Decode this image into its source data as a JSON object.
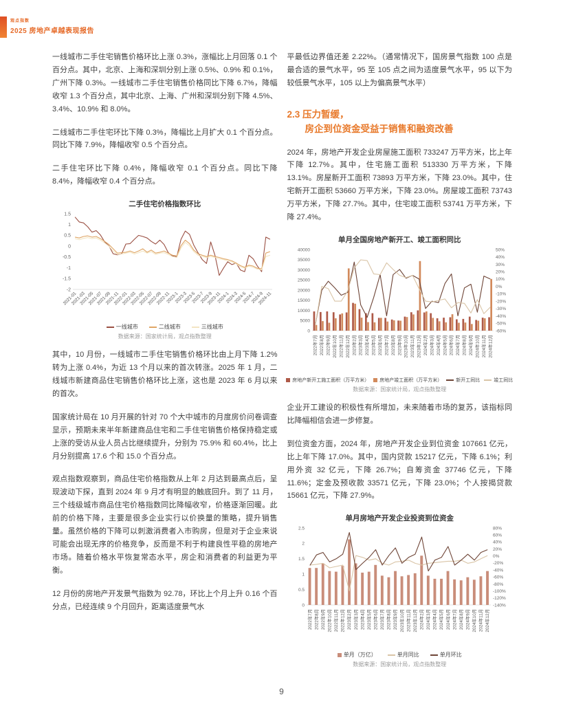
{
  "header": {
    "brand": "观点指数",
    "report_title": "2025 房地产卓越表现报告"
  },
  "page_number": "9",
  "left_column": {
    "paragraphs": [
      "一线城市二手住宅销售价格环比上涨 0.3%，涨幅比上月回落 0.1 个百分点。其中，北京、上海和深圳分别上涨 0.5%、0.9% 和 0.1%，广州下降 0.3%。一线城市二手住宅销售价格同比下降 6.7%，降幅收窄 1.3 个百分点，其中北京、上海、广州和深圳分别下降 4.5%、3.4%、10.9% 和 8.0%。",
      "二线城市二手住宅环比下降 0.3%，降幅比上月扩大 0.1 个百分点。同比下降 7.9%，降幅收窄 0.5 个百分点。",
      "二手住宅环比下降 0.4%，降幅收窄 0.1 个百分点。同比下降 8.4%，降幅收窄 0.4 个百分点。",
      "其中，10 月份，一线城市二手住宅销售价格环比由上月下降 1.2% 转为上涨 0.4%，为近 13 个月以来的首次转涨。2025 年 1 月，二线城市新建商品住宅销售价格环比上涨，这也是 2023 年 6 月以来的首次。",
      "国家统计局在 10 月开展的针对 70 个大中城市的月度房价问卷调查显示，预期未来半年新建商品住宅和二手住宅销售价格保持稳定或上涨的受访从业人员占比继续提升，分别为 75.9% 和 60.4%，比上月分别提高 17.6 个和 15.0 个百分点。",
      "观点指数观察到，商品住宅价格指数从上年 2 月达到最高点后，呈现波动下探，直到 2024 年 9 月才有明显的触底回升。到了 11 月，三个线级城市商品住宅价格指数同比降幅收窄，价格逐渐回暖。此前的价格下降，主要是很多企业实行以价换量的策略，提升销售量。虽然价格的下降可以刺激消费者入市购房，但是对于企业来说可能会出现无序的价格竞争，反而是不利于构建良性平稳的房地产市场。随着价格水平恢复常态水平，房企和消费者的利益更为平衡。",
      "12 月份的房地产开发景气指数为 92.78，环比上个月上升 0.16 个百分点，已经连续 9 个月回升，距离适度景气水"
    ]
  },
  "right_column": {
    "paragraphs": [
      "平最低边界值还差 2.22%。（通常情况下，国房景气指数 100 点是最合适的景气水平，95 至 105 点之间为适度景气水平，95 以下为较低景气水平，105 以上为偏高景气水平）",
      "2024 年，房地产开发企业房屋施工面积 733247 万平方米，比上年下降 12.7%。其中，住宅施工面积 513330 万平方米，下降 13.1%。房屋新开工面积 73893 万平方米，下降 23.0%。其中，住宅新开工面积 53660 万平方米，下降 23.0%。房屋竣工面积 73743 万平方米，下降 27.7%。其中，住宅竣工面积 53741 万平方米，下降 27.4%。",
      "企业开工建设的积极性有所增加，未来随着市场的复苏，该指标同比降幅相信会进一步修复。",
      "到位资金方面，2024 年，房地产开发企业到位资金 107661 亿元，比上年下降 17.0%。其中，国内贷款 15217 亿元，下降 6.1%；利用外资 32 亿元，下降 26.7%；自筹资金 37746 亿元，下降 11.6%；定金及预收款 33571 亿元，下降 23.0%；个人按揭贷款 15661 亿元，下降 27.9%。"
    ],
    "heading": {
      "line1": "2.3 压力暂缓，",
      "line2": "房企到位资金受益于销售和融资改善"
    }
  },
  "chart_data": [
    {
      "id": "resale-price-index-mom",
      "type": "line",
      "title": "二手住宅价格指数环比",
      "source": "数据来源：国家统计局，观点指数整理",
      "legend_position": "bottom",
      "grid": false,
      "label_every": 2,
      "left_axis": {
        "min": -2,
        "max": 1.5,
        "step": 0.5
      },
      "categories": [
        "2021-01",
        "2021-02",
        "2021-03",
        "2021-04",
        "2021-05",
        "2021-06",
        "2021-07",
        "2021-08",
        "2021-09",
        "2021-10",
        "2021-11",
        "2021-12",
        "2022-01",
        "2022-02",
        "2022-03",
        "2022-04",
        "2022-05",
        "2022-06",
        "2022-07",
        "2022-08",
        "2022-09",
        "2022-10",
        "2022-11",
        "2022-12",
        "2023-1",
        "2023-2",
        "2023-3",
        "2023-4",
        "2023-5",
        "2023-6",
        "2023-7",
        "2023-8",
        "2023-9",
        "2023-10",
        "2023-11",
        "2023-12",
        "2024-1",
        "2024-2",
        "2024-3",
        "2024-4",
        "2024-5",
        "2024-6",
        "2024-7",
        "2024-8",
        "2024-9",
        "2024-10",
        "2024-11"
      ],
      "series": [
        {
          "name": "一线城市",
          "color": "#9a4f42",
          "values": [
            1.35,
            1.12,
            1.08,
            0.9,
            0.65,
            0.72,
            0.52,
            0.2,
            0.02,
            -0.35,
            -0.4,
            -0.35,
            0.1,
            0.12,
            0.32,
            0.5,
            0.45,
            0.38,
            0.22,
            0.1,
            0.28,
            0.08,
            -0.3,
            -0.45,
            -0.48,
            0.32,
            0.7,
            0.55,
            0.05,
            -0.3,
            -0.62,
            -0.8,
            0.2,
            -0.42,
            -1.35,
            -1.02,
            -0.72,
            -0.85,
            -0.78,
            -1.1,
            -1.18,
            -0.42,
            -0.58,
            -0.92,
            -1.18,
            0.42,
            0.32
          ]
        },
        {
          "name": "二线城市",
          "color": "#dfa565",
          "values": [
            0.42,
            0.38,
            0.45,
            0.48,
            0.42,
            0.45,
            0.35,
            0.22,
            0.08,
            -0.12,
            -0.32,
            -0.3,
            -0.28,
            -0.22,
            -0.3,
            -0.22,
            -0.12,
            -0.28,
            -0.18,
            -0.32,
            -0.28,
            -0.22,
            -0.32,
            -0.42,
            -0.45,
            0.02,
            0.28,
            0.12,
            -0.18,
            -0.35,
            -0.42,
            -0.48,
            -0.42,
            -0.48,
            -0.52,
            -0.58,
            -0.62,
            -0.68,
            -0.78,
            -0.9,
            -0.98,
            -0.88,
            -0.92,
            -1.02,
            -1.05,
            -0.32,
            -0.25
          ]
        },
        {
          "name": "三线城市",
          "color": "#f3e5c3",
          "values": [
            0.35,
            0.3,
            0.36,
            0.4,
            0.35,
            0.38,
            0.28,
            0.15,
            0.0,
            -0.22,
            -0.38,
            -0.36,
            -0.32,
            -0.28,
            -0.36,
            -0.3,
            -0.22,
            -0.32,
            -0.25,
            -0.38,
            -0.32,
            -0.3,
            -0.38,
            -0.48,
            -0.52,
            -0.08,
            0.18,
            0.02,
            -0.25,
            -0.42,
            -0.48,
            -0.52,
            -0.48,
            -0.52,
            -0.58,
            -0.62,
            -0.68,
            -0.72,
            -0.82,
            -0.95,
            -1.02,
            -0.92,
            -0.98,
            -1.06,
            -1.1,
            -0.48,
            -0.42
          ]
        }
      ]
    },
    {
      "id": "monthly-starts-completions-yoy",
      "type": "combo-bar-line",
      "title": "单月全国房地产新开工、竣工面积同比",
      "source": "数据来源：国家统计局，观点指数整理",
      "legend_position": "bottom",
      "grid": false,
      "label_every": 1,
      "left_axis": {
        "min": 0,
        "max": 40000,
        "step": 5000
      },
      "right_axis": {
        "min": -60,
        "max": 50,
        "step": 10,
        "percent": true
      },
      "categories": [
        "2022年7月",
        "2022年8月",
        "2022年9月",
        "2022年10月",
        "2022年11月",
        "2022年12月",
        "2023年2月",
        "2023年3月",
        "2023年4月",
        "2023年5月",
        "2023年6月",
        "2023年7月",
        "2023年8月",
        "2023年9月",
        "2023年10月",
        "2023年11月",
        "2023年12月",
        "2024年2月",
        "2024年3月",
        "2024年4月",
        "2024年5月",
        "2024年6月",
        "2024年7月",
        "2024年8月",
        "2024年9月",
        "2024年10月",
        "2024年11月",
        "2024年12月"
      ],
      "bar_series": [
        {
          "name": "房地产新开工施工面积（万平方米）",
          "color": "#ae5a48",
          "values": [
            9500,
            9200,
            9500,
            9100,
            8000,
            9000,
            13700,
            10600,
            8600,
            8600,
            6300,
            6300,
            5500,
            5000,
            6900,
            9100,
            10000,
            9000,
            8600,
            6100,
            6400,
            6600,
            5600,
            5800,
            6900,
            5300,
            6400,
            6600
          ]
        },
        {
          "name": "房地产竣工面积（万平方米）",
          "color": "#d28a5c",
          "values": [
            2800,
            4700,
            3900,
            6100,
            8500,
            30700,
            13300,
            6400,
            4200,
            4100,
            6300,
            4500,
            5100,
            4900,
            6700,
            8000,
            34300,
            9500,
            6300,
            4600,
            4100,
            8100,
            3900,
            4000,
            3300,
            4900,
            6100,
            25500
          ]
        }
      ],
      "line_series": [
        {
          "name": "新开工同比",
          "color": "#6e4436",
          "values": [
            -52,
            -5,
            7,
            -2,
            -12,
            -8,
            33,
            -25,
            -42,
            -15,
            16,
            -40,
            16,
            23,
            11,
            15,
            10,
            -30,
            -20,
            -22,
            4,
            17,
            -40,
            -2,
            3,
            -35,
            14,
            10
          ]
        },
        {
          "name": "竣工同比",
          "color": "#d9c4a6",
          "values": [
            -52,
            0,
            -3,
            -20,
            -20,
            -6,
            25,
            36,
            35,
            17,
            16,
            32,
            23,
            15,
            12,
            15,
            -3,
            -20,
            -21,
            -19,
            -17,
            -29,
            -22,
            -23,
            -36,
            -18,
            -37,
            -28
          ]
        }
      ]
    },
    {
      "id": "monthly-developer-funds",
      "type": "combo-bar-line",
      "title": "单月房地产开发企业投资到位资金",
      "source": "数据来源：国家统计局，观点指数整理",
      "legend_position": "bottom",
      "grid": false,
      "label_every": 1,
      "left_axis": {
        "min": 0,
        "max": 2.5,
        "step": 0.5
      },
      "right_axis": {
        "min": -140,
        "max": 80,
        "step": 20,
        "percent": true
      },
      "categories": [
        "2022年7月",
        "2022年8月",
        "2022年9月",
        "2022年10月",
        "2022年11月",
        "2022年12月",
        "2023年2月",
        "2023年3月",
        "2023年4月",
        "2023年5月",
        "2023年6月",
        "2023年7月",
        "2023年8月",
        "2023年9月",
        "2023年10月",
        "2023年11月",
        "2023年12月",
        "2024年2月",
        "2024年3月",
        "2024年4月",
        "2024年5月",
        "2024年6月",
        "2024年7月",
        "2024年8月",
        "2024年9月",
        "2024年10月",
        "2024年11月",
        "2024年12月"
      ],
      "bar_series": [
        {
          "name": "单月（万亿）",
          "color": "#c98d7a",
          "values": [
            1.2,
            1.2,
            1.35,
            1.1,
            1.08,
            1.27,
            2.13,
            1.35,
            1.05,
            1.08,
            1.3,
            0.95,
            0.9,
            1.1,
            0.93,
            0.97,
            1.03,
            1.6,
            0.95,
            0.85,
            0.85,
            1.1,
            0.83,
            0.8,
            0.9,
            0.82,
            0.93,
            1.1
          ]
        }
      ],
      "line_series": [
        {
          "name": "单月同比",
          "color": "#d9c4a6",
          "values": [
            -26,
            -24,
            -21,
            -34,
            -30,
            -26,
            -100,
            1,
            -4,
            -12,
            -8,
            -21,
            -26,
            -17,
            -15,
            -12,
            -21,
            -26,
            -21,
            -19,
            -17,
            -15,
            -15,
            -12,
            -21,
            -17,
            -8,
            1
          ]
        },
        {
          "name": "单月环比",
          "color": "#6e4436",
          "values": [
            -27,
            3,
            10,
            -17,
            -8,
            5,
            67,
            -39,
            -21,
            -4,
            18,
            -26,
            1,
            23,
            -21,
            -4,
            5,
            54,
            -43,
            -12,
            -4,
            27,
            -26,
            -12,
            5,
            -12,
            10,
            18
          ]
        }
      ]
    }
  ]
}
